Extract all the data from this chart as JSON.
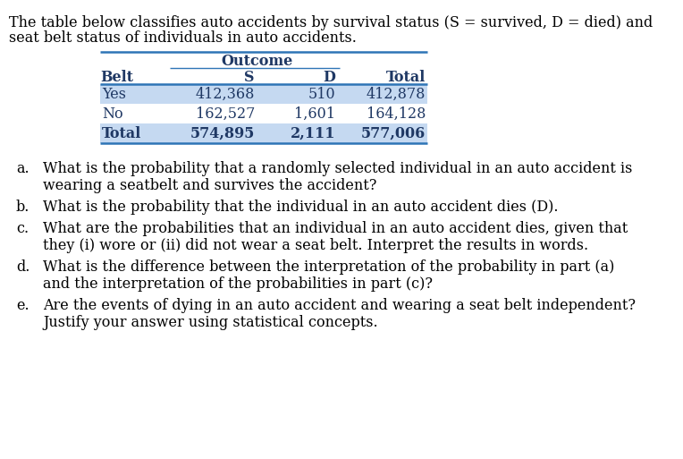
{
  "intro_text_line1": "The table below classifies auto accidents by survival status (S = survived, D = died) and",
  "intro_text_line2": "seat belt status of individuals in auto accidents.",
  "table_header_group": "Outcome",
  "table_col_headers": [
    "Belt",
    "S",
    "D",
    "Total"
  ],
  "table_rows": [
    [
      "Yes",
      "412,368",
      "510",
      "412,878"
    ],
    [
      "No",
      "162,527",
      "1,601",
      "164,128"
    ],
    [
      "Total",
      "574,895",
      "2,111",
      "577,006"
    ]
  ],
  "row_shading": [
    "#c5d9f1",
    "#ffffff",
    "#c5d9f1"
  ],
  "questions": [
    {
      "label": "a.",
      "line1": "What is the probability that a randomly selected individual in an auto accident is",
      "line2": "wearing a seatbelt and survives the accident?"
    },
    {
      "label": "b.",
      "line1": "What is the probability that the individual in an auto accident dies (D).",
      "line2": ""
    },
    {
      "label": "c.",
      "line1": "What are the probabilities that an individual in an auto accident dies, given that",
      "line2": "they (i) wore or (ii) did not wear a seat belt. Interpret the results in words."
    },
    {
      "label": "d.",
      "line1": "What is the difference between the interpretation of the probability in part (a)",
      "line2": "and the interpretation of the probabilities in part (c)?"
    },
    {
      "label": "e.",
      "line1": "Are the events of dying in an auto accident and wearing a seat belt independent?",
      "line2": "Justify your answer using statistical concepts."
    }
  ],
  "bg_color": "#ffffff",
  "text_color": "#000000",
  "bold_color": "#1f3864",
  "table_text_color": "#1f3864",
  "line_color": "#2e75b6",
  "font_size": 11.5,
  "table_font_size": 11.5,
  "q_font_size": 11.5
}
